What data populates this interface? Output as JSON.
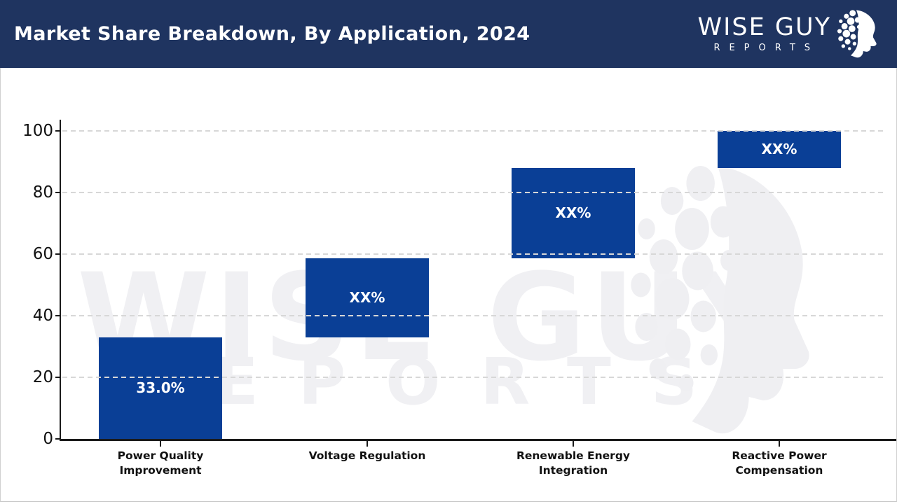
{
  "header": {
    "title": "Market Share Breakdown, By Application, 2024",
    "background": "#1f3460"
  },
  "logo": {
    "brand": "WISE GUY",
    "sub": "REPORTS"
  },
  "watermark": {
    "brand": "WISE GUY",
    "sub": "REPORTS"
  },
  "chart_data": {
    "type": "bar",
    "subtype": "waterfall",
    "title": "Market Share Breakdown, By Application, 2024",
    "categories": [
      "Power Quality\nImprovement",
      "Voltage Regulation",
      "Renewable Energy\nIntegration",
      "Reactive Power\nCompensation"
    ],
    "segments": [
      {
        "category": "Power Quality Improvement",
        "start": 0,
        "end": 33,
        "value": 33.0,
        "label": "33.0%"
      },
      {
        "category": "Voltage Regulation",
        "start": 33,
        "end": 58.6,
        "value": 25.6,
        "label": "XX%"
      },
      {
        "category": "Renewable Energy Integration",
        "start": 58.6,
        "end": 88,
        "value": 29.4,
        "label": "XX%"
      },
      {
        "category": "Reactive Power Compensation",
        "start": 88,
        "end": 100,
        "value": 12.0,
        "label": "XX%"
      }
    ],
    "ylim": [
      0,
      100
    ],
    "yticks": [
      0,
      20,
      40,
      60,
      80,
      100
    ],
    "grid": "horizontal-dashed",
    "legend": false,
    "bar_color": "#0a3f96",
    "bar_label_color": "#ffffff",
    "axis_color": "#1a1a1a"
  }
}
